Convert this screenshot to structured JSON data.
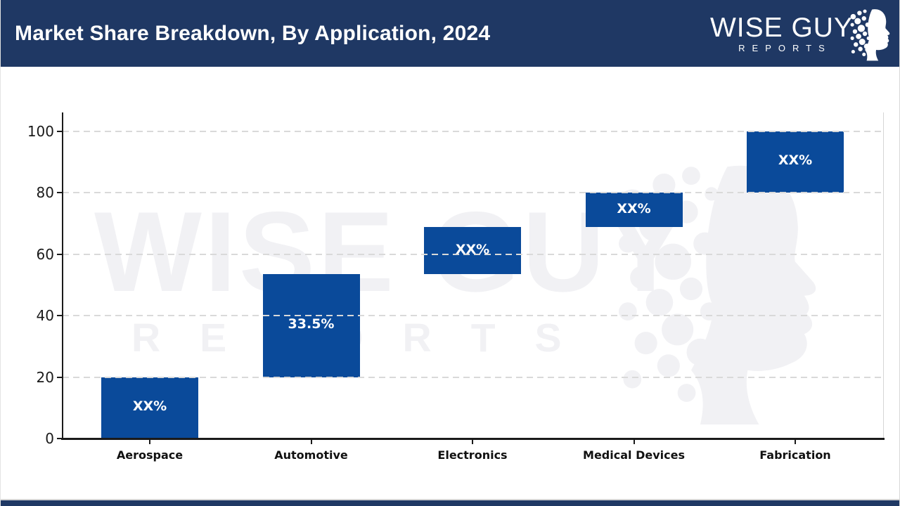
{
  "header": {
    "title": "Market Share Breakdown, By Application, 2024",
    "logo_line1": "WISE GUY",
    "logo_line2": "REPORTS"
  },
  "watermark": {
    "line1": "WISE GUY",
    "line2": "REPORTS"
  },
  "chart_data": {
    "type": "bar",
    "variant": "waterfall",
    "title": "Market Share Breakdown, By Application, 2024",
    "categories": [
      "Aerospace",
      "Automotive",
      "Electronics",
      "Medical Devices",
      "Fabrication"
    ],
    "bars": [
      {
        "category": "Aerospace",
        "start": 0,
        "end": 20,
        "label": "XX%"
      },
      {
        "category": "Automotive",
        "start": 20,
        "end": 53.5,
        "label": "33.5%"
      },
      {
        "category": "Electronics",
        "start": 53.5,
        "end": 68.75,
        "label": "XX%"
      },
      {
        "category": "Medical Devices",
        "start": 68.75,
        "end": 80,
        "label": "XX%"
      },
      {
        "category": "Fabrication",
        "start": 80,
        "end": 100,
        "label": "XX%"
      }
    ],
    "xlabel": "",
    "ylabel": "",
    "ylim": [
      0,
      100
    ],
    "yticks": [
      0,
      20,
      40,
      60,
      80,
      100
    ],
    "grid": "horizontal-dashed",
    "legend": "none",
    "bar_color": "#0a4a9a",
    "bar_label_color": "#ffffff"
  },
  "colors": {
    "header_bg": "#1f3864",
    "footer_bg": "#1f3864",
    "bar": "#0a4a9a",
    "grid": "#d9d9d9",
    "axis": "#1a1a1a",
    "watermark": "#f1f1f4"
  }
}
